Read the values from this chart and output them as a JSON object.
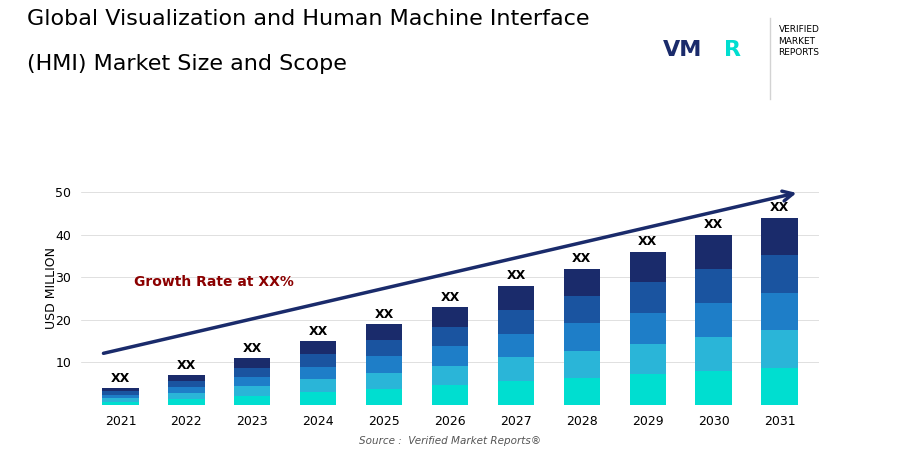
{
  "title_line1": "Global Visualization and Human Machine Interface",
  "title_line2": "(HMI) Market Size and Scope",
  "ylabel": "USD MILLION",
  "source": "Source :  Verified Market Reports®",
  "growth_label": "Growth Rate at XX%",
  "years": [
    2021,
    2022,
    2023,
    2024,
    2025,
    2026,
    2027,
    2028,
    2029,
    2030,
    2031
  ],
  "bar_label": "XX",
  "totals": [
    4,
    7,
    11,
    15,
    19,
    23,
    28,
    32,
    36,
    40,
    44
  ],
  "n_segments": 5,
  "colors": [
    "#00ded0",
    "#2ab5d8",
    "#1e7ec8",
    "#1a54a0",
    "#1a2b6b"
  ],
  "ylim": [
    0,
    55
  ],
  "yticks": [
    0,
    10,
    20,
    30,
    40,
    50
  ],
  "arrow_color": "#1a2b6b",
  "growth_color": "#8b0000",
  "background_color": "#ffffff",
  "title_fontsize": 16,
  "axis_label_fontsize": 9,
  "bar_label_fontsize": 9,
  "bar_width": 0.55
}
